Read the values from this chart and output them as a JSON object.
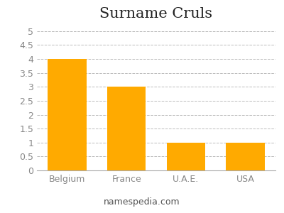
{
  "title": "Surname Cruls",
  "categories": [
    "Belgium",
    "France",
    "U.A.E.",
    "USA"
  ],
  "values": [
    4,
    3,
    1,
    1
  ],
  "bar_color": "#FFAA00",
  "ylim": [
    0,
    5.2
  ],
  "yticks": [
    0,
    0.5,
    1,
    1.5,
    2,
    2.5,
    3,
    3.5,
    4,
    4.5,
    5
  ],
  "grid_color": "#bbbbbb",
  "background_color": "#ffffff",
  "footer_text": "namespedia.com",
  "title_fontsize": 15,
  "tick_fontsize": 9,
  "footer_fontsize": 9,
  "bar_width": 0.65
}
